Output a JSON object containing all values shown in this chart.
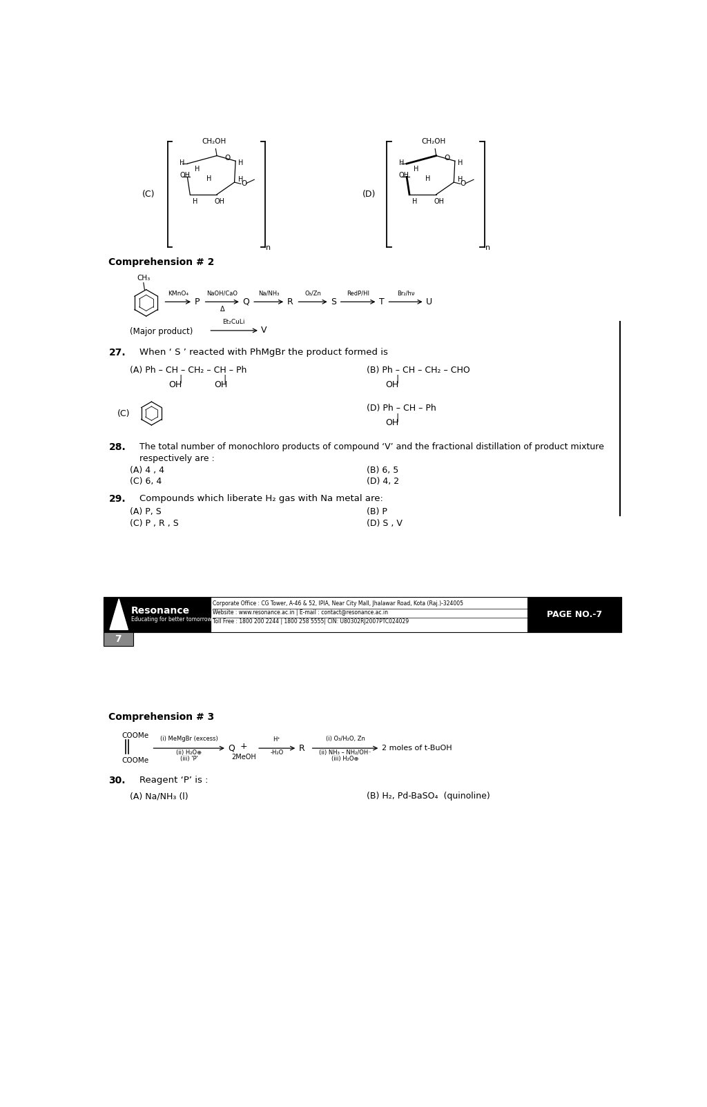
{
  "bg_color": "#ffffff",
  "page_width": 10.24,
  "page_height": 16.04,
  "footer_text": "Corporate Office : CG Tower, A-46 & 52, IPIA, Near City Mall, Jhalawar Road, Kota (Raj.)-324005",
  "footer_website": "Website : www.resonance.ac.in | E-mail : contact@resonance.ac.in",
  "footer_toll": "Toll Free : 1800 200 2244 | 1800 258 5555| CIN: U80302RJ2007PTC024029",
  "footer_page": "PAGE NO.-7",
  "resonance_text": "Resonance",
  "resonance_sub": "Educating for better tomorrow",
  "page_number": "7",
  "comp2_heading": "Comprehension # 2",
  "comp3_heading": "Comprehension # 3",
  "q27_text": "When ‘ S ’ reacted with PhMgBr the product formed is",
  "q28_text": "The total number of monochloro products of compound ‘V’ and the fractional distillation of product mixture",
  "q28_text2": "respectively are :",
  "q29_text": "Compounds which liberate H₂ gas with Na metal are:",
  "q30_text": "Reagent ‘P’ is :"
}
